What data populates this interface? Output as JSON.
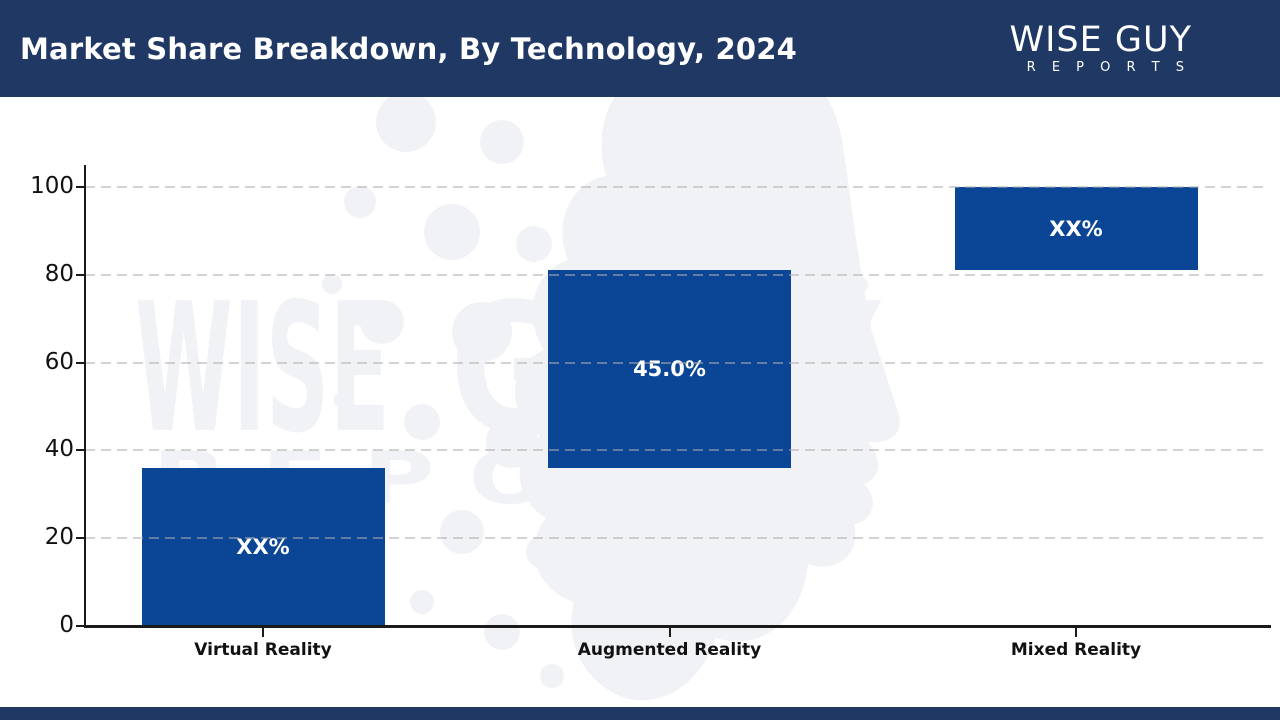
{
  "header": {
    "title": "Market Share Breakdown, By Technology, 2024",
    "logo": {
      "name": "WISE GUY",
      "subname": "R E P O R T S"
    }
  },
  "watermark": {
    "word1": "WISE",
    "word2": "G U Y",
    "word3": "R E P O R T S"
  },
  "chart_data": {
    "type": "bar",
    "variant": "waterfall-floating-bars",
    "title": "Market Share Breakdown, By Technology, 2024",
    "categories": [
      "Virtual Reality",
      "Augmented Reality",
      "Mixed Reality"
    ],
    "segments": [
      {
        "category": "Virtual Reality",
        "start": 0,
        "end": 36,
        "label": "XX%"
      },
      {
        "category": "Augmented Reality",
        "start": 36,
        "end": 81,
        "label": "45.0%"
      },
      {
        "category": "Mixed Reality",
        "start": 81,
        "end": 100,
        "label": "XX%"
      }
    ],
    "yticks": [
      0,
      20,
      40,
      60,
      80,
      100
    ],
    "ylim": [
      0,
      105
    ],
    "xlabel": "",
    "ylabel": "",
    "grid": "horizontal-dashed",
    "legend": "none",
    "bar_color": "#0a4596"
  },
  "colors": {
    "header_bg": "#1f3864",
    "footer_bg": "#1f3864",
    "bar": "#0a4596",
    "grid": "#d9d9d9",
    "axis": "#1a1a1a",
    "watermark": "#f1f2f5"
  }
}
